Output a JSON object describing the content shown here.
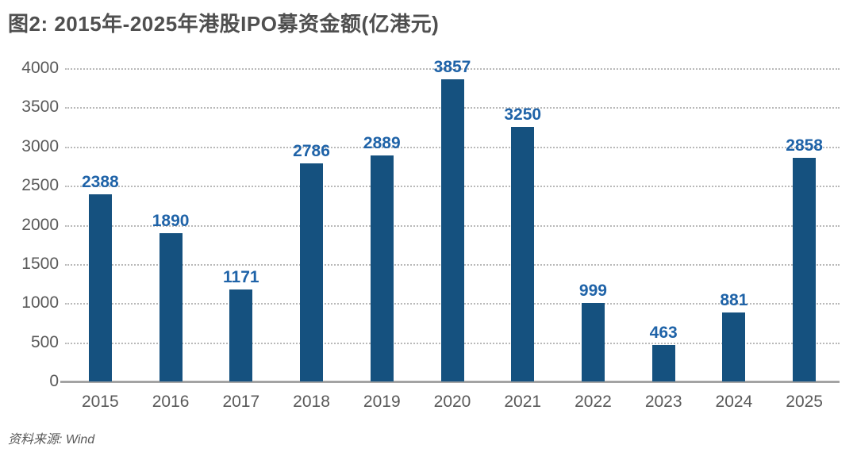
{
  "title": "图2: 2015年-2025年港股IPO募资金额(亿港元)",
  "source": "资料来源: Wind",
  "colors": {
    "bar": "#15517f",
    "value_label": "#1f63a8",
    "axis_text": "#595959",
    "title_text": "#4f4f4f",
    "gridline": "#b9b9b9",
    "baseline": "#a3a3a3",
    "background": "#ffffff"
  },
  "chart_data": {
    "type": "bar",
    "title": "图2: 2015年-2025年港股IPO募资金额(亿港元)",
    "categories": [
      "2015",
      "2016",
      "2017",
      "2018",
      "2019",
      "2020",
      "2021",
      "2022",
      "2023",
      "2024",
      "2025"
    ],
    "values": [
      2388,
      1890,
      1171,
      2786,
      2889,
      3857,
      3250,
      999,
      463,
      881,
      2858
    ],
    "value_labels_shown": true,
    "xlabel": "",
    "ylabel": "",
    "ylim": [
      0,
      4000
    ],
    "ytick_step": 500,
    "yticks": [
      0,
      500,
      1000,
      1500,
      2000,
      2500,
      3000,
      3500,
      4000
    ],
    "grid": "horizontal-dotted",
    "legend": "none",
    "source_note": "资料来源: Wind"
  }
}
